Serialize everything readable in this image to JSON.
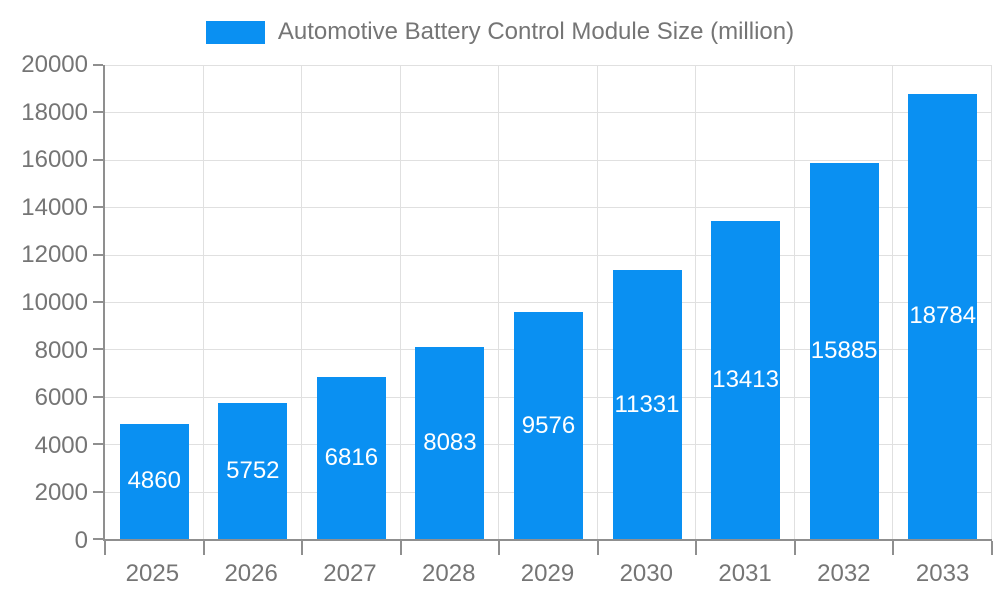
{
  "chart_data": {
    "type": "bar",
    "title": "Automotive Battery Control Module Size (million)",
    "categories": [
      "2025",
      "2026",
      "2027",
      "2028",
      "2029",
      "2030",
      "2031",
      "2032",
      "2033"
    ],
    "values": [
      4860,
      5752,
      6816,
      8083,
      9576,
      11331,
      13413,
      15885,
      18784
    ],
    "xlabel": "",
    "ylabel": "",
    "ylim": [
      0,
      20000
    ],
    "ytick_step": 2000,
    "grid": "on",
    "legend_position": "top-center",
    "bar_color": "#0a90f2",
    "bar_label_color": "#ffffff",
    "text_color": "#757575",
    "axis_color": "#8f8f8f",
    "grid_color": "#e0e0e0",
    "background_color": "#ffffff"
  }
}
